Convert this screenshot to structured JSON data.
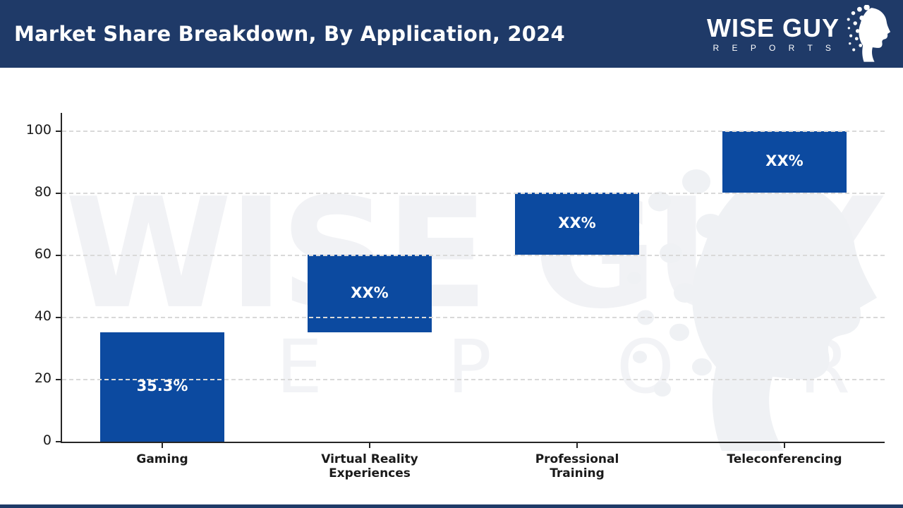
{
  "header": {
    "title": "Market Share Breakdown, By Application, 2024"
  },
  "logo": {
    "name": "WISE GUY",
    "subname": "R E P O R T S"
  },
  "watermark": {
    "line1": "WISE GUY",
    "line2": "R E P O R T S"
  },
  "chart_data": {
    "type": "bar",
    "subtype": "waterfall",
    "title": "Market Share Breakdown, By Application, 2024",
    "categories": [
      "Gaming",
      "Virtual Reality\nExperiences",
      "Professional\nTraining",
      "Teleconferencing"
    ],
    "bars": [
      {
        "category": "Gaming",
        "start": 0,
        "end": 35.3,
        "label": "35.3%"
      },
      {
        "category": "Virtual Reality Experiences",
        "start": 35.3,
        "end": 60.3,
        "label": "XX%"
      },
      {
        "category": "Professional Training",
        "start": 60.3,
        "end": 80.3,
        "label": "XX%"
      },
      {
        "category": "Teleconferencing",
        "start": 80.3,
        "end": 100,
        "label": "XX%"
      }
    ],
    "yticks": [
      0,
      20,
      40,
      60,
      80,
      100
    ],
    "ylim": [
      0,
      106
    ],
    "xlabel": "",
    "ylabel": "",
    "grid": "horizontal-dashed",
    "legend": "none",
    "colors": {
      "bar": "#0c4aa0",
      "bar_label": "#ffffff",
      "axis": "#262626",
      "grid": "#d9d9d9",
      "tick_label": "#1a1a1a",
      "category_label": "#1a1a1a",
      "header_bg": "#1f3a68",
      "footer_bg": "#1f3a68",
      "watermark": "#f1f2f5"
    }
  }
}
